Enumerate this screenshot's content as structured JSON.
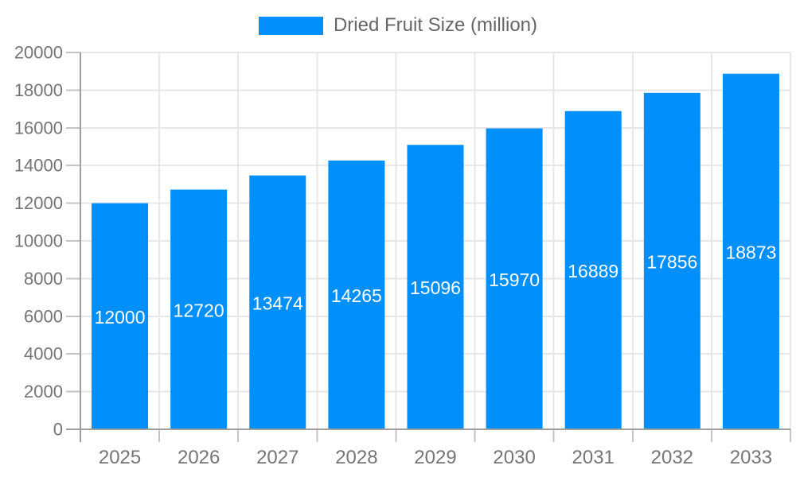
{
  "chart_data": {
    "type": "bar",
    "title": "Dried Fruit Size (million)",
    "series": [
      {
        "name": "Dried Fruit Size (million)",
        "values": [
          12000,
          12720,
          13474,
          14265,
          15096,
          15970,
          16889,
          17856,
          18873
        ]
      }
    ],
    "categories": [
      "2025",
      "2026",
      "2027",
      "2028",
      "2029",
      "2030",
      "2031",
      "2032",
      "2033"
    ],
    "xlabel": "",
    "ylabel": "",
    "ylim": [
      0,
      20000
    ],
    "ytick_step": 2000,
    "ytick_labels": [
      "0",
      "2000",
      "4000",
      "6000",
      "8000",
      "10000",
      "12000",
      "14000",
      "16000",
      "18000",
      "20000"
    ],
    "grid": true,
    "legend_position": "top-center",
    "value_label_position": "inside-center",
    "colors": {
      "bar": "#008ffb",
      "grid_line": "#e7e7e7",
      "tick_line": "#c4c4c4",
      "axis_line": "#9e9e9e",
      "axis_text": "#757575",
      "legend_text": "#666666",
      "value_text": "#ffffff",
      "background": "#ffffff"
    }
  }
}
